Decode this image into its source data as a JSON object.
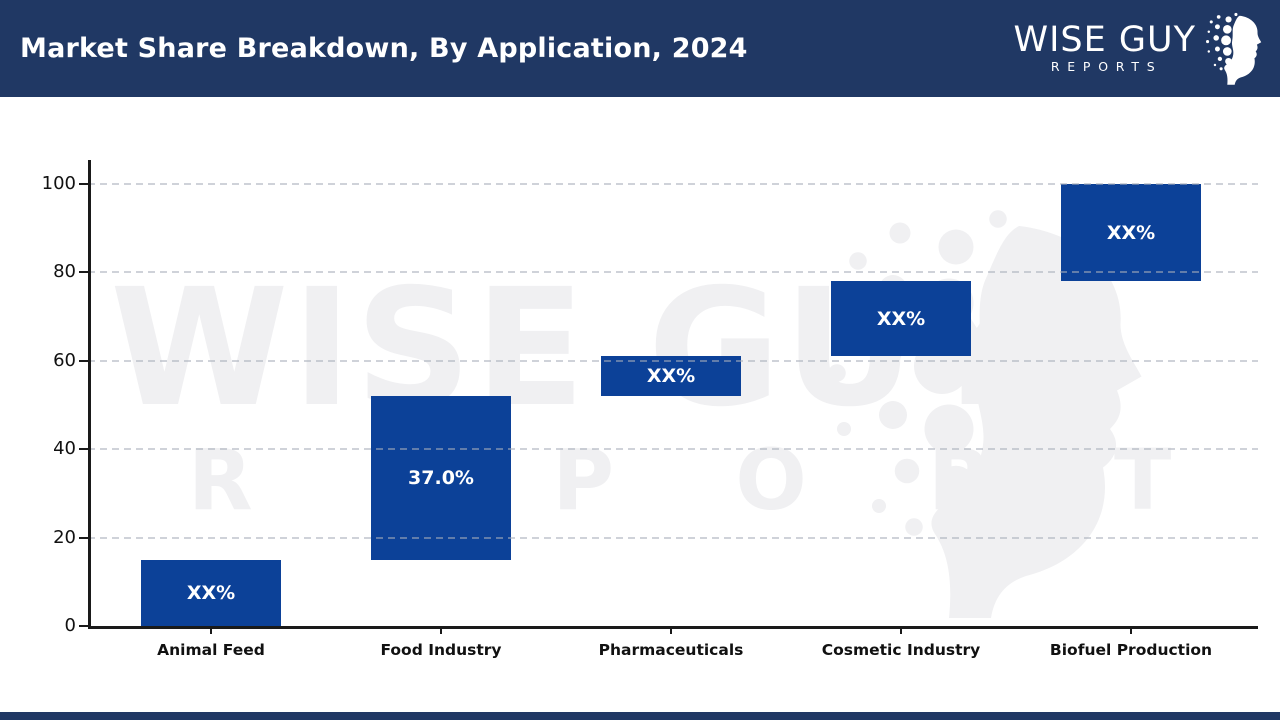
{
  "header": {
    "title": "Market Share Breakdown, By Application, 2024",
    "logo": {
      "line1": "WISE GUY",
      "line2": "REPORTS"
    }
  },
  "watermark": {
    "line1": "WISE GUY",
    "line2": "R E P O R T S"
  },
  "colors": {
    "header_bg": "#203864",
    "bar": "#0c4198",
    "grid": "#d9d9d9",
    "axis": "#1a1a1a",
    "bar_label_text": "#ffffff",
    "watermark": "#f0f0f2"
  },
  "chart_data": {
    "type": "bar",
    "subtype": "waterfall",
    "title": "Market Share Breakdown, By Application, 2024",
    "categories": [
      "Animal Feed",
      "Food Industry",
      "Pharmaceuticals",
      "Cosmetic Industry",
      "Biofuel Production"
    ],
    "bars": [
      {
        "category": "Animal Feed",
        "start": 0,
        "end": 15,
        "value": 15,
        "label": "XX%"
      },
      {
        "category": "Food Industry",
        "start": 15,
        "end": 52,
        "value": 37,
        "label": "37.0%"
      },
      {
        "category": "Pharmaceuticals",
        "start": 52,
        "end": 61,
        "value": 9,
        "label": "XX%"
      },
      {
        "category": "Cosmetic Industry",
        "start": 61,
        "end": 78,
        "value": 17,
        "label": "XX%"
      },
      {
        "category": "Biofuel Production",
        "start": 78,
        "end": 100,
        "value": 22,
        "label": "XX%"
      }
    ],
    "yticks": [
      0,
      20,
      40,
      60,
      80,
      100
    ],
    "ylim": [
      0,
      105
    ],
    "xlabel": "",
    "ylabel": "",
    "grid": "horizontal-dashed",
    "legend": "none",
    "bar_color": "#0c4198"
  }
}
